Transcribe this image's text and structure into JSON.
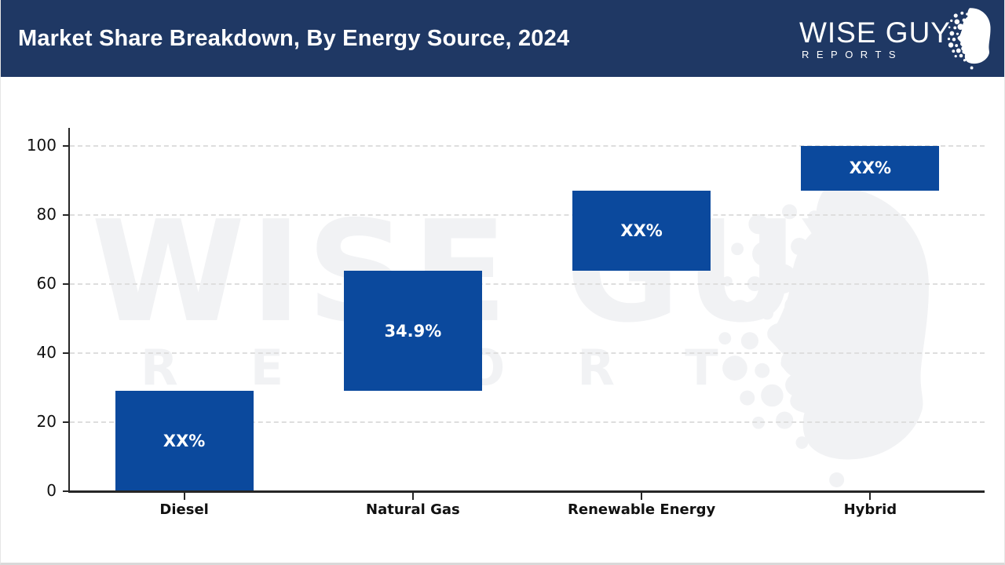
{
  "header": {
    "title": "Market Share Breakdown, By Energy Source, 2024",
    "logo": {
      "line1": "WISE GUY",
      "line2": "REPORTS"
    }
  },
  "watermark": {
    "line1": "WISE GUY",
    "line2": "REPORTS"
  },
  "colors": {
    "header_bg": "#1f3864",
    "bar": "#0b499d",
    "bar_label": "#ffffff",
    "watermark": "#f1f2f4",
    "gridline": "#dedede",
    "axis": "#262626"
  },
  "chart_data": {
    "type": "bar",
    "subtype": "waterfall",
    "title": "Market Share Breakdown, By Energy Source, 2024",
    "xlabel": "",
    "ylabel": "",
    "categories": [
      "Diesel",
      "Natural Gas",
      "Renewable Energy",
      "Hybrid"
    ],
    "segments": [
      {
        "category": "Diesel",
        "start": 0,
        "end": 29.0,
        "value": 29.0,
        "label": "XX%"
      },
      {
        "category": "Natural Gas",
        "start": 29.0,
        "end": 63.9,
        "value": 34.9,
        "label": "34.9%"
      },
      {
        "category": "Renewable Energy",
        "start": 63.9,
        "end": 87.1,
        "value": 23.2,
        "label": "XX%"
      },
      {
        "category": "Hybrid",
        "start": 87.1,
        "end": 100,
        "value": 12.9,
        "label": "XX%"
      }
    ],
    "yticks": [
      0,
      20,
      40,
      60,
      80,
      100
    ],
    "ylim": [
      0,
      100
    ],
    "grid": "horizontal dashed",
    "legend": "none",
    "bar_color": "#0b499d",
    "label_color": "#ffffff"
  }
}
